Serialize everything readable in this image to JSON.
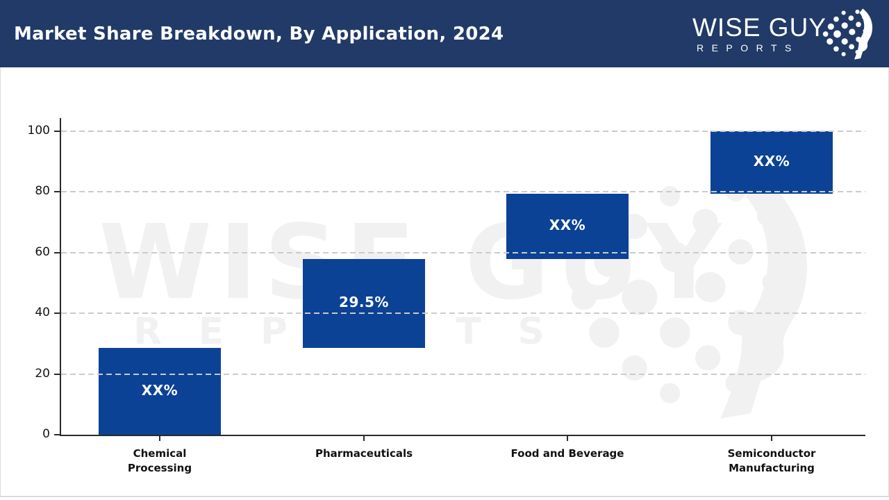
{
  "header": {
    "title": "Market Share Breakdown, By Application, 2024",
    "logo_line1": "WISE GUY",
    "logo_line2": "REPORTS"
  },
  "watermark": {
    "line1": "WISE GUY",
    "line2": "REPORTS"
  },
  "colors": {
    "header_bg": "#213A67",
    "bar": "#0B4296",
    "grid": "#CBCBCB",
    "axis": "#2A2A2A",
    "tick_text": "#141414",
    "bar_label_text": "#FFFFFF",
    "watermark": "#F1F1F2"
  },
  "chart_data": {
    "type": "bar",
    "subtype": "waterfall",
    "title": "Market Share Breakdown, By Application, 2024",
    "xlabel": "",
    "ylabel": "",
    "ylim": [
      0,
      105
    ],
    "y_ticks": [
      0,
      20,
      40,
      60,
      80,
      100
    ],
    "grid": "horizontal-dashed",
    "legend": "none",
    "categories": [
      "Chemical Processing",
      "Pharmaceuticals",
      "Food and Beverage",
      "Semiconductor Manufacturing"
    ],
    "bars": [
      {
        "category": "Chemical Processing",
        "category_lines": [
          "Chemical",
          "Processing"
        ],
        "start": 0,
        "end": 28.5,
        "value_label": "XX%"
      },
      {
        "category": "Pharmaceuticals",
        "category_lines": [
          "Pharmaceuticals"
        ],
        "start": 28.5,
        "end": 58,
        "value_label": "29.5%"
      },
      {
        "category": "Food and Beverage",
        "category_lines": [
          "Food and Beverage"
        ],
        "start": 58,
        "end": 79.5,
        "value_label": "XX%"
      },
      {
        "category": "Semiconductor Manufacturing",
        "category_lines": [
          "Semiconductor",
          "Manufacturing"
        ],
        "start": 79.5,
        "end": 100,
        "value_label": "XX%"
      }
    ]
  }
}
